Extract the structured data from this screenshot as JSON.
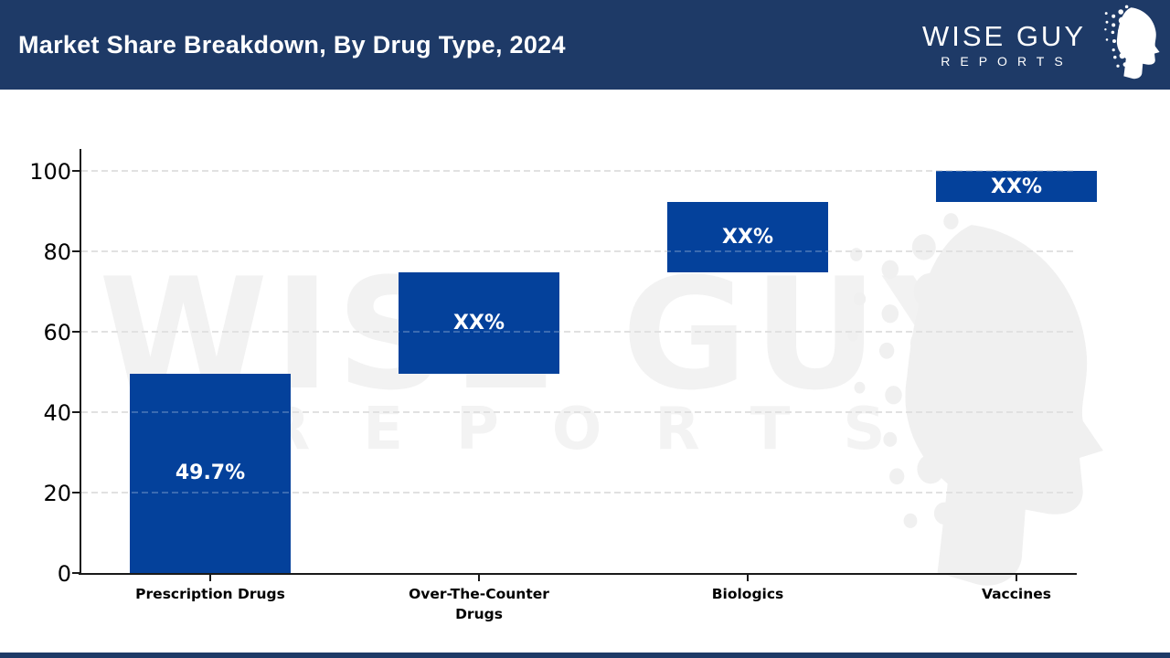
{
  "header": {
    "title": "Market Share Breakdown, By Drug Type, 2024",
    "logo": {
      "line1": "WISE GUY",
      "line2": "REPORTS"
    }
  },
  "watermark": {
    "line1": "WISE GUY",
    "line2": "REPORTS"
  },
  "colors": {
    "header_bg": "#1E3A67",
    "footer_bg": "#1E3A67",
    "bar": "#04419B",
    "bar_label": "#FFFFFF",
    "gridline": "#D9D9D9",
    "axis": "#1A1A1A",
    "watermark": "#F2F2F2"
  },
  "chart_data": {
    "type": "bar",
    "subtype": "floating-waterfall",
    "title": "Market Share Breakdown, By Drug Type, 2024",
    "categories": [
      "Prescription Drugs",
      "Over-The-Counter Drugs",
      "Biologics",
      "Vaccines"
    ],
    "segments": [
      {
        "category": "Prescription Drugs",
        "start": 0,
        "end": 49.7,
        "value": 49.7,
        "label": "49.7%"
      },
      {
        "category": "Over-The-Counter Drugs",
        "start": 49.7,
        "end": 74.8,
        "value": 25.1,
        "label": "XX%"
      },
      {
        "category": "Biologics",
        "start": 74.8,
        "end": 92.3,
        "value": 17.5,
        "label": "XX%"
      },
      {
        "category": "Vaccines",
        "start": 92.3,
        "end": 100.0,
        "value": 7.7,
        "label": "XX%"
      }
    ],
    "xlabel": "",
    "ylabel": "",
    "ylim": [
      0,
      100
    ],
    "yticks": [
      0,
      20,
      40,
      60,
      80,
      100
    ],
    "grid": "horizontal-dashed",
    "legend": "none",
    "bar_color": "#04419B",
    "label_color": "#FFFFFF"
  }
}
